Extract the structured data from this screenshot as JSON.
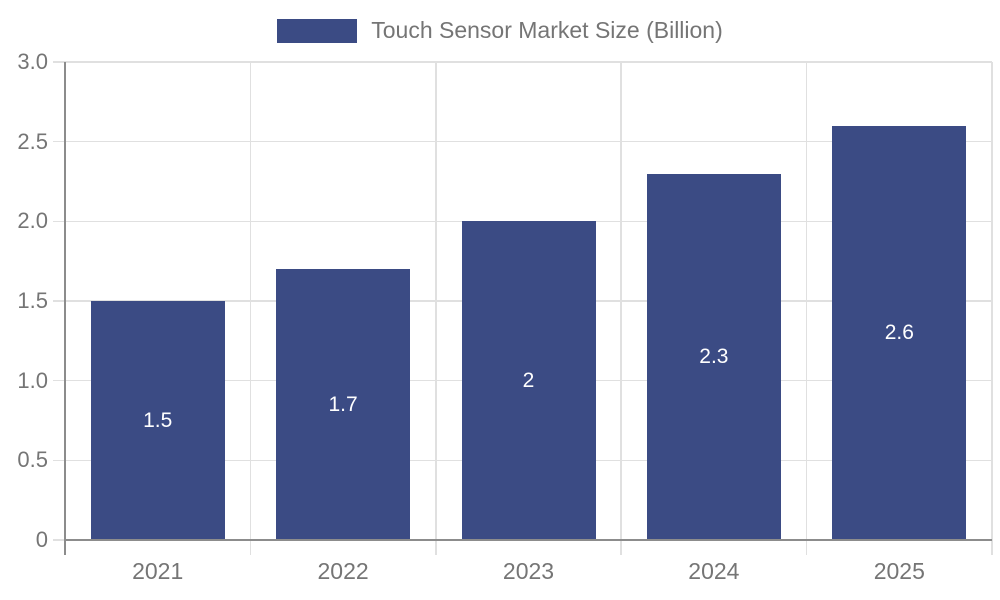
{
  "legend": {
    "label": "Touch Sensor Market Size (Billion)"
  },
  "chart_data": {
    "type": "bar",
    "title": "Touch Sensor Market Size (Billion)",
    "categories": [
      "2021",
      "2022",
      "2023",
      "2024",
      "2025"
    ],
    "values": [
      1.5,
      1.7,
      2,
      2.3,
      2.6
    ],
    "bar_labels": [
      "1.5",
      "1.7",
      "2",
      "2.3",
      "2.6"
    ],
    "xlabel": "",
    "ylabel": "",
    "ylim": [
      0,
      3
    ],
    "ytick_step": 0.5,
    "ytick_labels": [
      "0",
      "0.5",
      "1.0",
      "1.5",
      "2.0",
      "2.5",
      "3.0"
    ],
    "grid": true,
    "legend_position": "top-center",
    "colors": {
      "bar": "#3B4B84",
      "grid": "#E0E0E0",
      "axis": "#8C8C8C",
      "tick_label": "#757575",
      "value_label": "#FFFFFF",
      "legend_text": "#757575",
      "background": "#FFFFFF"
    }
  }
}
